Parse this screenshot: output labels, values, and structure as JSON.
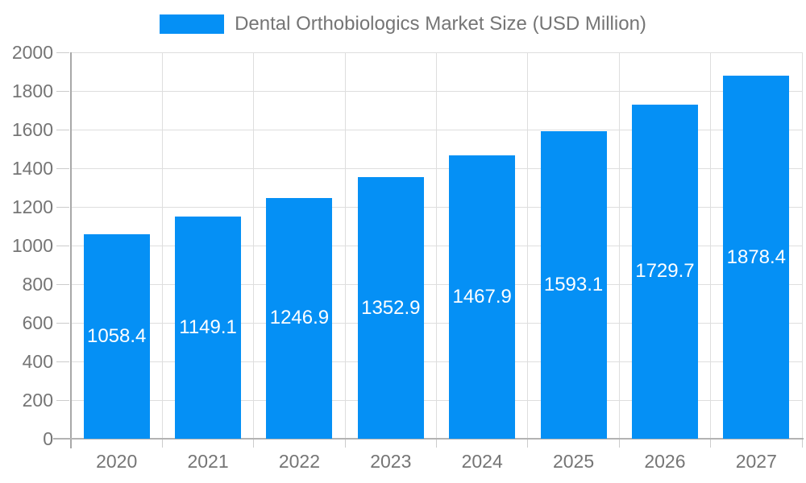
{
  "legend": {
    "label": "Dental Orthobiologics Market Size (USD Million)"
  },
  "chart_data": {
    "type": "bar",
    "title": "Dental Orthobiologics Market Size (USD Million)",
    "categories": [
      "2020",
      "2021",
      "2022",
      "2023",
      "2024",
      "2025",
      "2026",
      "2027"
    ],
    "values": [
      1058.4,
      1149.1,
      1246.9,
      1352.9,
      1467.9,
      1593.1,
      1729.7,
      1878.4
    ],
    "xlabel": "",
    "ylabel": "",
    "ylim": [
      0,
      2000
    ],
    "ytick_step": 200,
    "yticks": [
      0,
      200,
      400,
      600,
      800,
      1000,
      1200,
      1400,
      1600,
      1800,
      2000
    ],
    "grid": true,
    "legend_position": "top-center",
    "bar_color": "#0590F5",
    "bar_label_color": "#FFFFFF",
    "axis_text_color": "#757575",
    "x_axis_line_color": "#B3B3B3",
    "y_axis_line_color": "#A8A8A8",
    "grid_color": "#DEDEDE",
    "tick_color": "#CCCCCC"
  }
}
